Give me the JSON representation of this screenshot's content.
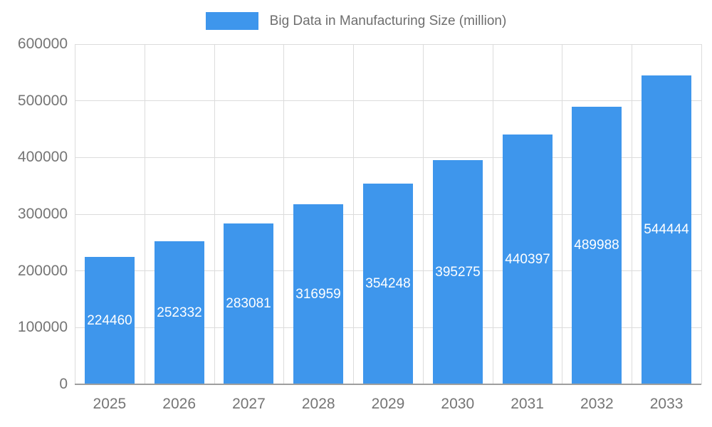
{
  "chart_data": {
    "type": "bar",
    "title": "Big Data in Manufacturing Size (million)",
    "categories": [
      "2025",
      "2026",
      "2027",
      "2028",
      "2029",
      "2030",
      "2031",
      "2032",
      "2033"
    ],
    "values": [
      224460,
      252332,
      283081,
      316959,
      354248,
      395275,
      440397,
      489988,
      544444
    ],
    "xlabel": "",
    "ylabel": "",
    "ylim": [
      0,
      600000
    ],
    "y_tick_step": 100000,
    "y_tick_labels": [
      "0",
      "100000",
      "200000",
      "300000",
      "400000",
      "500000",
      "600000"
    ],
    "grid": true,
    "legend_position": "top",
    "bar_color": "#3E96EC",
    "bar_label_color": "#ffffff",
    "axis_text_color": "#757575",
    "grid_color": "#dcdcdc"
  }
}
